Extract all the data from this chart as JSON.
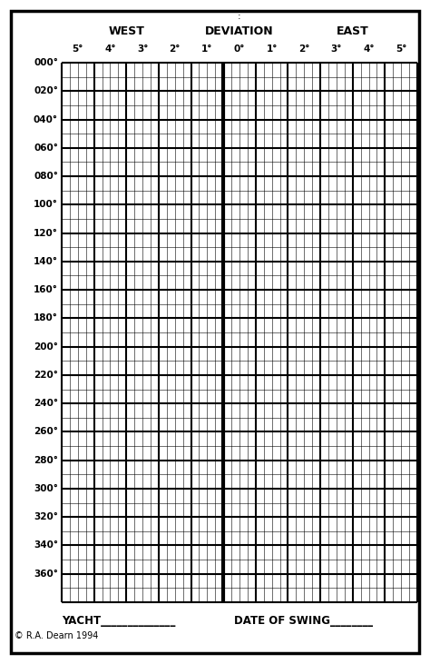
{
  "title": ":",
  "west_label": "WEST",
  "deviation_label": "DEVIATION",
  "east_label": "EAST",
  "col_labels": [
    "5°",
    "4°",
    "3°",
    "2°",
    "1°",
    "0°",
    "1°",
    "2°",
    "3°",
    "4°",
    "5°"
  ],
  "row_labels": [
    "000°",
    "020°",
    "040°",
    "060°",
    "080°",
    "100°",
    "120°",
    "140°",
    "160°",
    "180°",
    "200°",
    "220°",
    "240°",
    "260°",
    "280°",
    "300°",
    "320°",
    "340°",
    "360°"
  ],
  "yacht_label": "YACHT______________",
  "date_label": "DATE OF SWING________",
  "copyright": "© R.A. Dearn 1994",
  "num_cols": 11,
  "num_rows": 19,
  "sub_cols_per_col": 4,
  "sub_rows_per_row": 2,
  "zero_col_index": 5,
  "background_color": "#ffffff",
  "grid_color": "#000000",
  "major_lw": 1.5,
  "minor_lw": 0.4,
  "zero_lw": 3.0,
  "border_lw": 2.5
}
